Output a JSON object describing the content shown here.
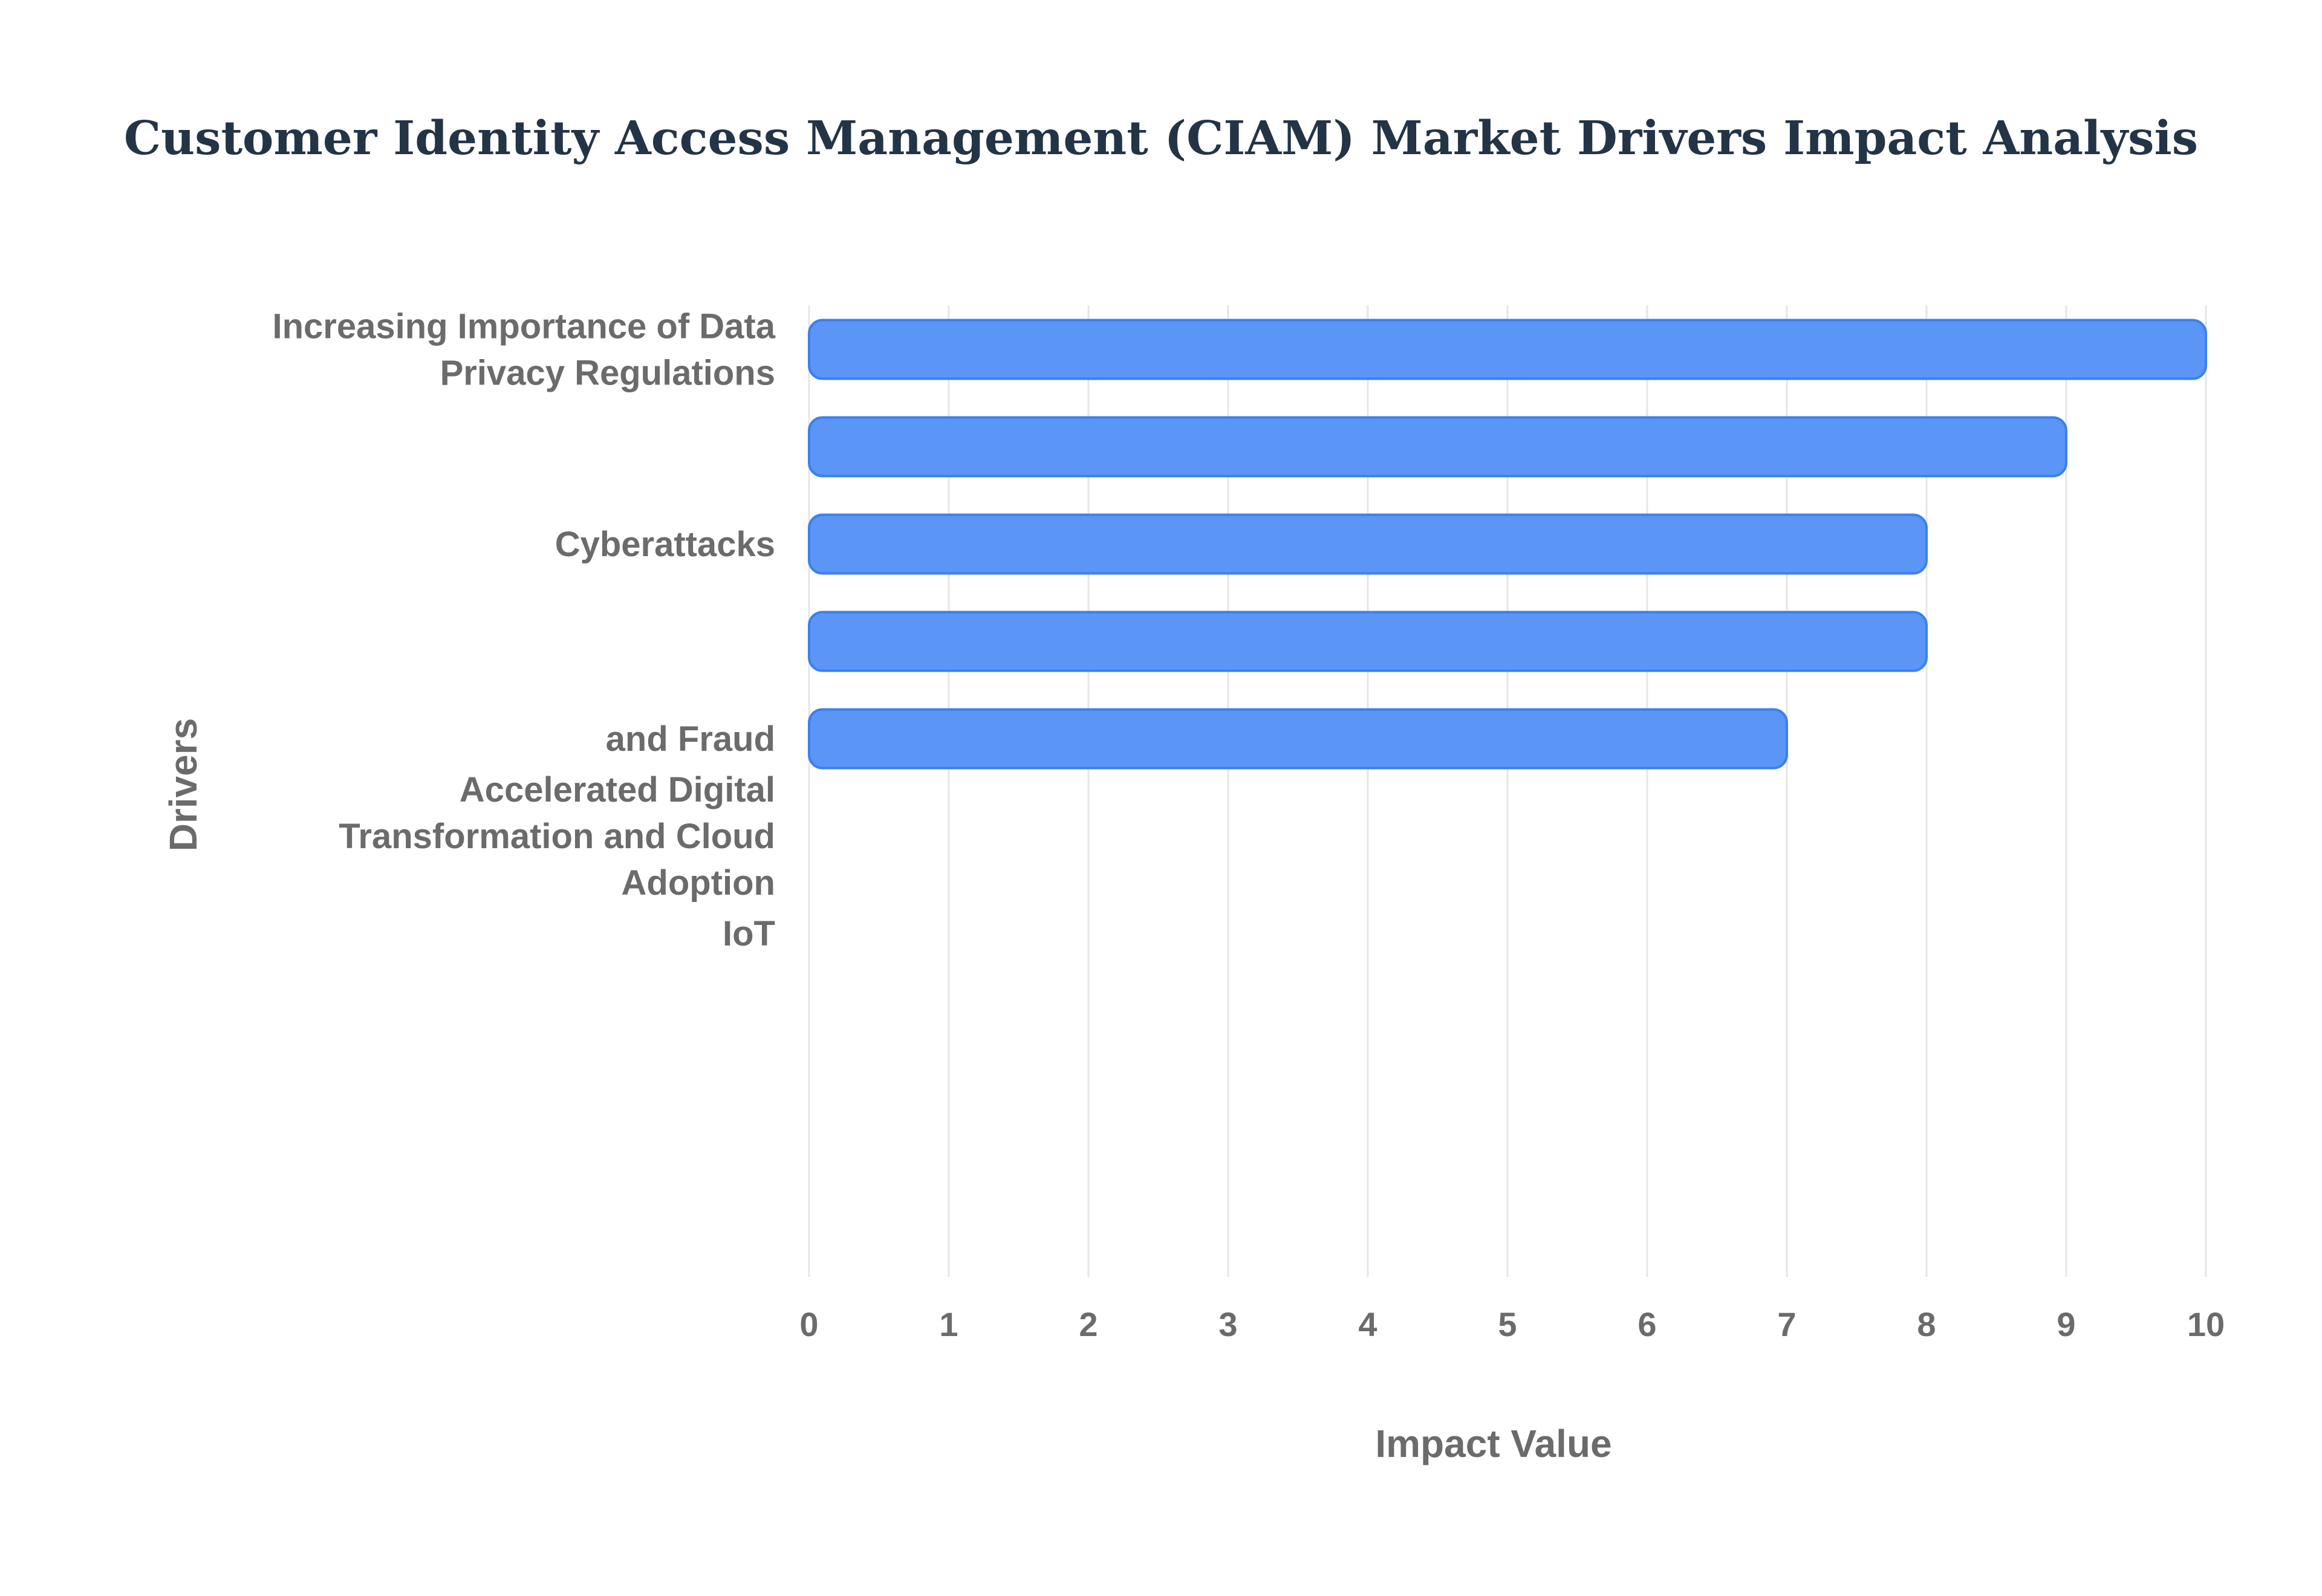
{
  "chart_data": {
    "type": "bar",
    "orientation": "horizontal",
    "title": "Customer Identity Access Management (CIAM) Market Drivers Impact Analysis",
    "xlabel": "Impact Value",
    "ylabel": "Drivers",
    "xlim": [
      0,
      10
    ],
    "x_ticks": [
      "0",
      "1",
      "2",
      "3",
      "4",
      "5",
      "6",
      "7",
      "8",
      "9",
      "10"
    ],
    "grid": true,
    "legend": "none",
    "categories": [
      [
        "Increasing Importance of Data",
        "Privacy Regulations"
      ],
      [],
      [
        "Cyberattacks"
      ],
      [],
      [
        "and Fraud"
      ],
      [
        "Accelerated Digital",
        "Transformation and Cloud",
        "Adoption"
      ],
      [
        "IoT"
      ]
    ],
    "values": [
      10,
      9,
      8,
      8,
      7,
      null,
      null
    ],
    "colors": {
      "bar_fill": "#5b95f6",
      "bar_stroke": "#3d7fee",
      "title": "#243447",
      "axis_text": "#6b6b6b",
      "grid": "#e6e6e6"
    }
  }
}
